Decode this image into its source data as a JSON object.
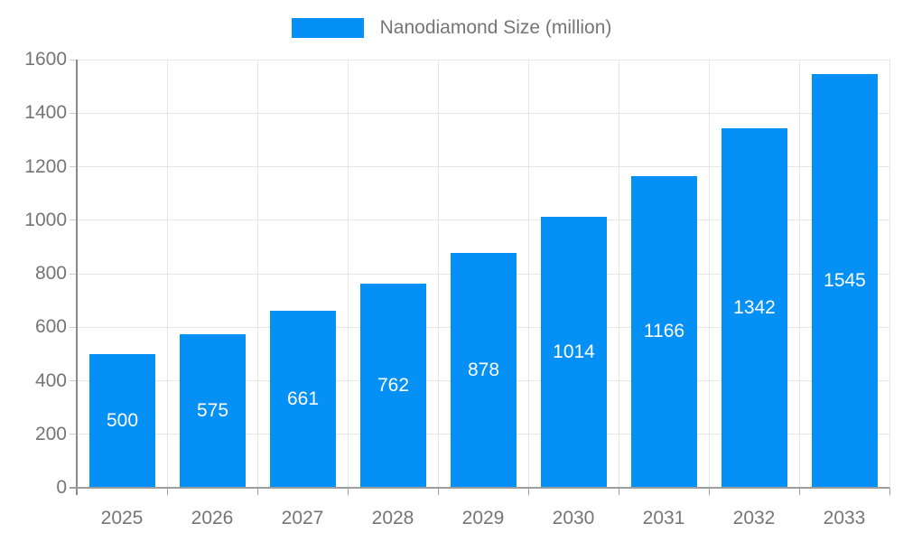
{
  "chart_data": {
    "type": "bar",
    "title": "",
    "legend": {
      "label": "Nanodiamond Size (million)",
      "position": "top"
    },
    "categories": [
      "2025",
      "2026",
      "2027",
      "2028",
      "2029",
      "2030",
      "2031",
      "2032",
      "2033"
    ],
    "series": [
      {
        "name": "Nanodiamond Size (million)",
        "values": [
          500,
          575,
          661,
          762,
          878,
          1014,
          1166,
          1342,
          1545
        ]
      }
    ],
    "data_labels": [
      "500",
      "575",
      "661",
      "762",
      "878",
      "1014",
      "1166",
      "1342",
      "1545"
    ],
    "xlabel": "",
    "ylabel": "",
    "ylim": [
      0,
      1600
    ],
    "ytick_step": 200,
    "ytick_labels": [
      "0",
      "200",
      "400",
      "600",
      "800",
      "1000",
      "1200",
      "1400",
      "1600"
    ],
    "grid": true,
    "colors": {
      "bar": "#0590f5",
      "grid": "#e6e6e6",
      "axis": "#9e9e9e",
      "tick_text": "#757575",
      "bar_label_text": "#ffffff",
      "background": "#ffffff"
    }
  }
}
